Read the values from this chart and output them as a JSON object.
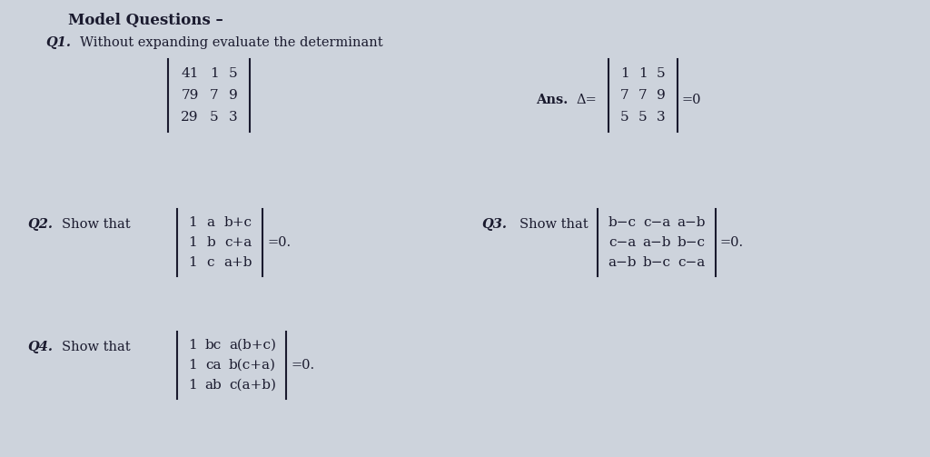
{
  "bg_color": "#cdd3dc",
  "title": "Model Questions –",
  "q1_label": "Q1.",
  "q1_text": "Without expanding evaluate the determinant",
  "q1_matrix_cols": [
    [
      "41",
      "79",
      "29"
    ],
    [
      "1",
      "7",
      "5"
    ],
    [
      "5",
      "9",
      "3"
    ]
  ],
  "q1_ans_label": "Ans.",
  "q1_ans_delta": "Δ=",
  "q1_ans_matrix_cols": [
    [
      "1",
      "7",
      "5"
    ],
    [
      "1",
      "7",
      "5"
    ],
    [
      "5",
      "9",
      "3"
    ]
  ],
  "q1_ans_eq": "=0",
  "q2_label": "Q2.",
  "q2_text": "Show that",
  "q2_matrix_cols": [
    [
      "1",
      "1",
      "1"
    ],
    [
      "a",
      "b",
      "c"
    ],
    [
      "b+c",
      "c+a",
      "a+b"
    ]
  ],
  "q2_eq": "=0.",
  "q3_label": "Q3.",
  "q3_text": "Show that",
  "q3_matrix_cols": [
    [
      "b−c",
      "c−a",
      "a−b"
    ],
    [
      "c−a",
      "a−b",
      "b−c"
    ],
    [
      "a−b",
      "b−c",
      "c−a"
    ]
  ],
  "q3_eq": "=0.",
  "q4_label": "Q4.",
  "q4_text": "Show that",
  "q4_matrix_cols": [
    [
      "1",
      "1",
      "1"
    ],
    [
      "bc",
      "ca",
      "ab"
    ],
    [
      "a(b+c)",
      "b(c+a)",
      "c(a+b)"
    ]
  ],
  "q4_eq": "=0.",
  "text_color": "#1a1a2e",
  "font_size_title": 12,
  "font_size_body": 10.5,
  "font_size_matrix": 11
}
